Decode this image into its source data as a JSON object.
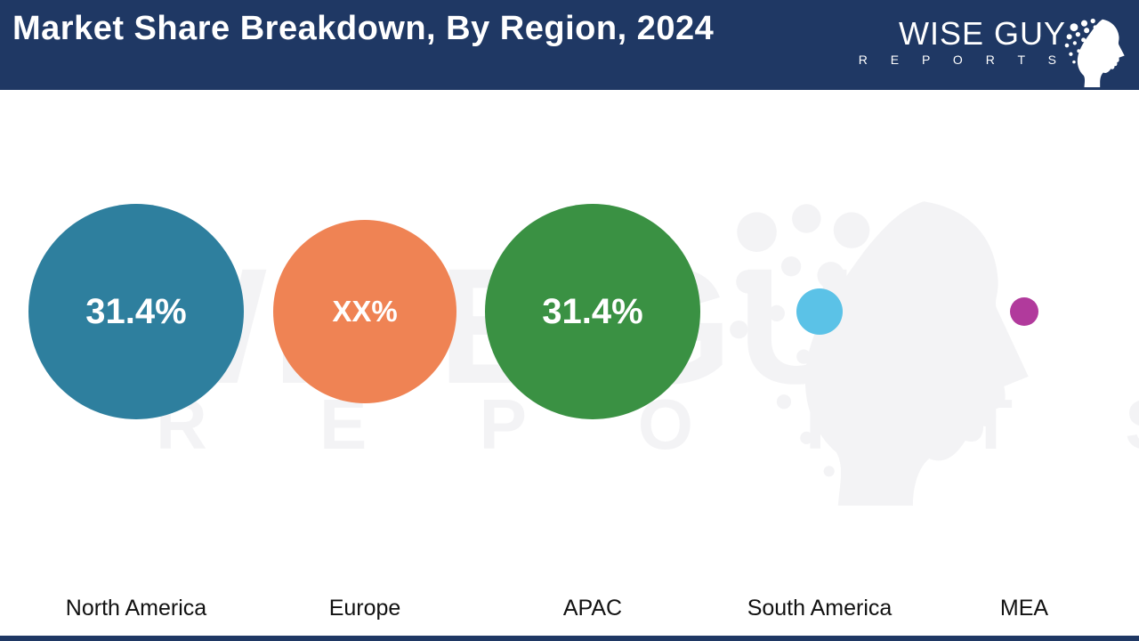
{
  "header": {
    "title": "Market Share Breakdown, By Region, 2024",
    "bg_color": "#1f3864",
    "logo": {
      "line1": "WISE GUY",
      "line2": "R E P O R T S"
    }
  },
  "watermark": {
    "line1": "WISE GUY",
    "line2": "R E P O R T S",
    "color": "#f3f3f5"
  },
  "chart_data": {
    "type": "bubble",
    "title": "Market Share Breakdown, By Region, 2024",
    "categories": [
      "North America",
      "Europe",
      "APAC",
      "South America",
      "MEA"
    ],
    "series": [
      {
        "name": "Market Share",
        "labels": [
          "31.4%",
          "XX%",
          "31.4%",
          "",
          ""
        ],
        "values": [
          31.4,
          null,
          31.4,
          null,
          null
        ]
      }
    ],
    "colors": [
      "#2e7f9e",
      "#ef8354",
      "#3a9143",
      "#5bc2e7",
      "#b13a9c"
    ],
    "bubble_radius_px": [
      121,
      103,
      121,
      26,
      16
    ],
    "legend_position": "none",
    "grid": false,
    "background": "#ffffff"
  }
}
